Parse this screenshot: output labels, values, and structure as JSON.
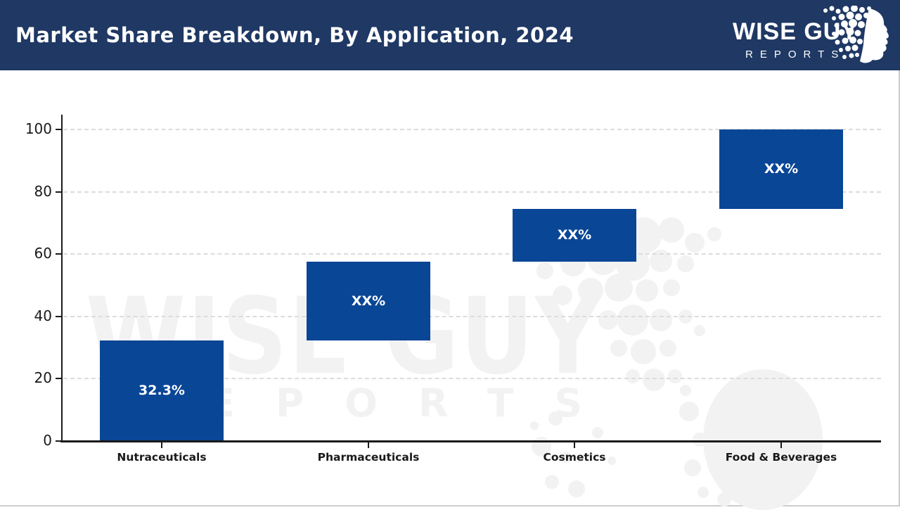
{
  "header": {
    "title": "Market Share Breakdown, By Application, 2024",
    "logo": {
      "name": "WISE GUY",
      "tagline": "REPORTS"
    }
  },
  "watermark": {
    "name": "WISE GUY",
    "tagline": "REPORTS"
  },
  "chart_data": {
    "type": "bar",
    "variant": "waterfall",
    "title": "Market Share Breakdown, By Application, 2024",
    "categories": [
      "Nutraceuticals",
      "Pharmaceuticals",
      "Cosmetics",
      "Food & Beverages"
    ],
    "segments": [
      {
        "category": "Nutraceuticals",
        "start": 0,
        "end": 32.3,
        "label": "32.3%"
      },
      {
        "category": "Pharmaceuticals",
        "start": 32.3,
        "end": 57.6,
        "label": "XX%"
      },
      {
        "category": "Cosmetics",
        "start": 57.6,
        "end": 74.5,
        "label": "XX%"
      },
      {
        "category": "Food & Beverages",
        "start": 74.5,
        "end": 100,
        "label": "XX%"
      }
    ],
    "xlabel": "",
    "ylabel": "",
    "yticks": [
      0,
      20,
      40,
      60,
      80,
      100
    ],
    "ylim": [
      0,
      105
    ],
    "grid": "horizontal-dashed",
    "legend": "none",
    "colors": {
      "bar": "#0a4696",
      "bar_label": "#ffffff",
      "header_bg": "#1f3864",
      "axis": "#1a1a1a",
      "gridline": "#dcdcdc",
      "tick_label": "#1a1a1a",
      "watermark": "#f2f2f2"
    }
  }
}
